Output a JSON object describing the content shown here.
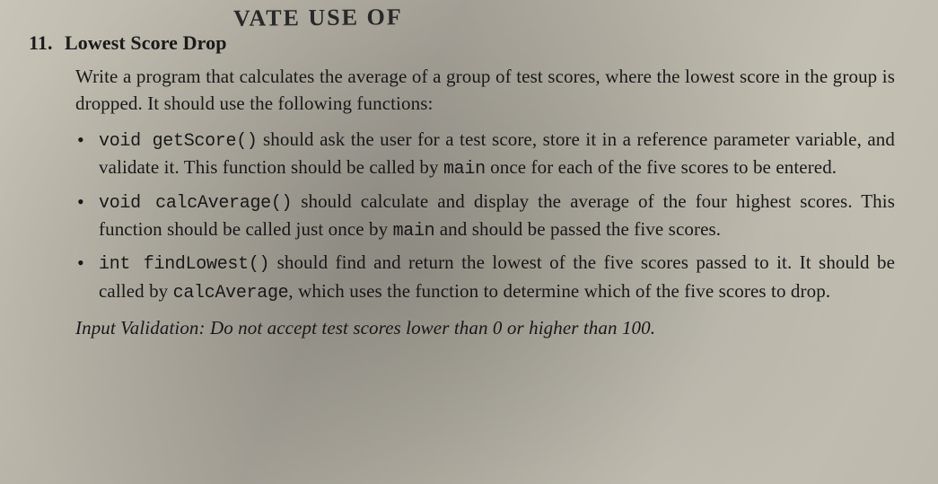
{
  "page": {
    "background_colors": [
      "#c8c4b8",
      "#b8b4a8",
      "#a8a49a",
      "#b4b0a4",
      "#c4c0b4"
    ],
    "text_color": "#1a1a1a",
    "font_family_body": "Georgia, Times New Roman, serif",
    "font_family_mono": "Courier New, monospace",
    "body_fontsize_pt": 16,
    "title_fontsize_pt": 17,
    "header_fragment_fontsize_pt": 20
  },
  "header_fragment": "VATE USE OF",
  "problem": {
    "number": "11.",
    "title": "Lowest Score Drop",
    "intro": "Write a program that calculates the average of a group of test scores, where the lowest score in the group is dropped. It should use the following functions:",
    "bullets": [
      {
        "code": "void getScore()",
        "rest_a": " should ask the user for a test score, store it in a reference param­eter variable, and validate it. This function should be called by ",
        "code_b": "main",
        "rest_b": " once for each of the five scores to be entered."
      },
      {
        "code": "void calcAverage()",
        "rest_a": " should calculate and display the average of the four highest scores. This function should be called just once by ",
        "code_b": "main",
        "rest_b": " and should be passed the five scores."
      },
      {
        "code": "int findLowest()",
        "rest_a": " should find and return the lowest of the five scores passed to it. It should be called by ",
        "code_b": "calcAverage",
        "rest_b": ", which uses the function to determine which of the five scores to drop."
      }
    ],
    "validation": "Input Validation: Do not accept test scores lower than 0 or higher than 100."
  }
}
